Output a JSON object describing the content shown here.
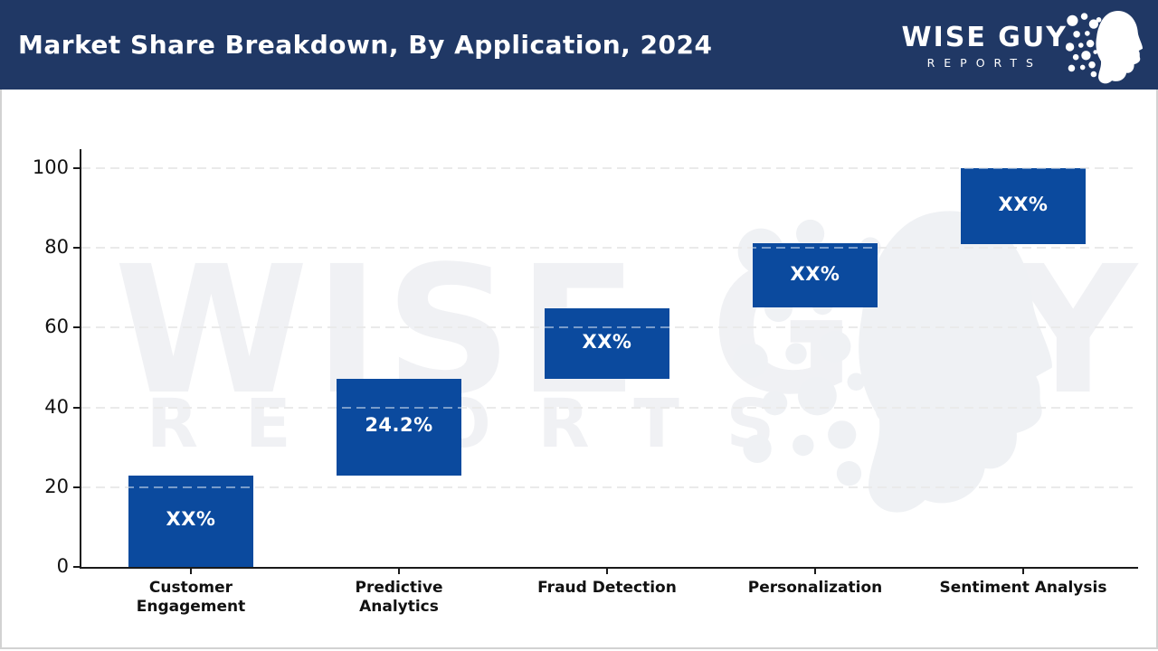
{
  "header": {
    "title": "Market Share Breakdown, By Application, 2024",
    "bg_color": "#203865",
    "logo": {
      "wordmark": "WISE GUY",
      "reports": "REPORTS"
    }
  },
  "watermark": {
    "wordmark": "WISE GUY",
    "reports": "REPORTS"
  },
  "chart_data": {
    "type": "bar",
    "subtype": "waterfall",
    "title": "Market Share Breakdown, By Application, 2024",
    "xlabel": "",
    "ylabel": "",
    "ylim": [
      0,
      105
    ],
    "grid": "dashed-horizontal",
    "legend": "none",
    "bar_color": "#0b4a9e",
    "categories": [
      "Customer Engagement",
      "Predictive Analytics",
      "Fraud Detection",
      "Personalization",
      "Sentiment Analysis"
    ],
    "xtick_labels": [
      "Customer\nEngagement",
      "Predictive\nAnalytics",
      "Fraud Detection",
      "Personalization",
      "Sentiment Analysis"
    ],
    "yticks": [
      0,
      20,
      40,
      60,
      80,
      100
    ],
    "segments": [
      {
        "category": "Customer Engagement",
        "start": 0,
        "end": 23,
        "label": "XX%"
      },
      {
        "category": "Predictive Analytics",
        "start": 23,
        "end": 47.2,
        "label": "24.2%"
      },
      {
        "category": "Fraud Detection",
        "start": 47.2,
        "end": 64.8,
        "label": "XX%"
      },
      {
        "category": "Personalization",
        "start": 65,
        "end": 81.2,
        "label": "XX%"
      },
      {
        "category": "Sentiment Analysis",
        "start": 81,
        "end": 100,
        "label": "XX%"
      }
    ]
  }
}
